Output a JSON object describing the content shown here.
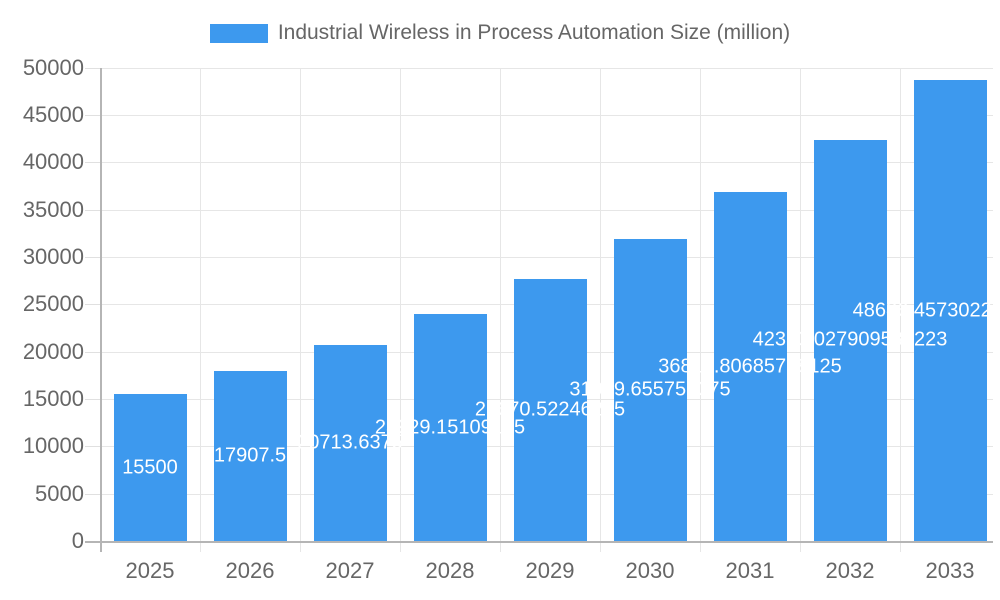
{
  "chart_data": {
    "type": "bar",
    "title": "Industrial Wireless in Process Automation Size (million)",
    "legend_position": "top",
    "grid": true,
    "categories": [
      "2025",
      "2026",
      "2027",
      "2028",
      "2029",
      "2030",
      "2031",
      "2032",
      "2033"
    ],
    "values": [
      "15500",
      "17907.5",
      "20713.6375",
      "23929.15109175",
      "27670.52246225",
      "31939.655755375",
      "36815.80685758125",
      "42363.027909583223",
      "48686.457302258223"
    ],
    "series_name": "Industrial Wireless in Process Automation Size (million)",
    "xlabel": "",
    "ylabel": "",
    "ylim": [
      0,
      50000
    ],
    "ytick_step": 5000,
    "yticks": [
      "0",
      "5000",
      "10000",
      "15000",
      "20000",
      "25000",
      "30000",
      "35000",
      "40000",
      "45000",
      "50000"
    ],
    "bar_color": "#3D99EE",
    "value_label_color": "#ffffff",
    "axis_text_color": "#666666",
    "gridline_color": "#e6e6e6",
    "axis_line_color": "#b5b5b5"
  }
}
